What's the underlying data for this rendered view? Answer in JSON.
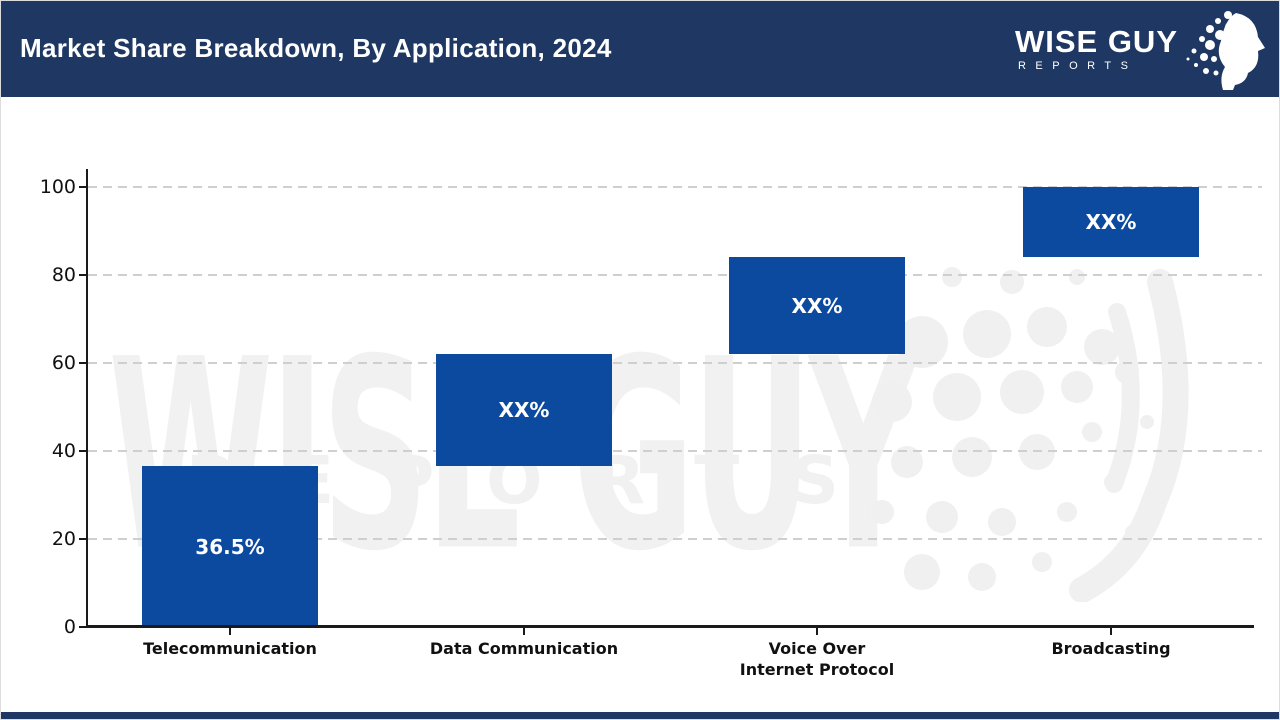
{
  "header": {
    "title": "Market Share Breakdown, By Application, 2024",
    "brand": {
      "name": "WISE GUY",
      "subtitle": "REPORTS"
    }
  },
  "watermark": {
    "wordmark": "WISE GUY",
    "subtitle": "REPORTS"
  },
  "chart_data": {
    "type": "bar",
    "subtype": "waterfall",
    "title": "Market Share Breakdown, By Application, 2024",
    "categories": [
      "Telecommunication",
      "Data Communication",
      "Voice Over\nInternet Protocol",
      "Broadcasting"
    ],
    "segments": [
      {
        "category": "Telecommunication",
        "start": 0,
        "end": 36.5,
        "label": "36.5%"
      },
      {
        "category": "Data Communication",
        "start": 36.5,
        "end": 62,
        "label": "XX%"
      },
      {
        "category": "Voice Over Internet Protocol",
        "start": 62,
        "end": 84,
        "label": "XX%"
      },
      {
        "category": "Broadcasting",
        "start": 84,
        "end": 100,
        "label": "XX%"
      }
    ],
    "xlabel": "",
    "ylabel": "",
    "ylim": [
      0,
      100
    ],
    "yticks": [
      0,
      20,
      40,
      60,
      80,
      100
    ],
    "grid": "horizontal-dashed",
    "legend": "none",
    "bar_color": "#0b4a9e",
    "bar_label_color": "#ffffff"
  },
  "colors": {
    "header_bg": "#1f3863",
    "footer_bg": "#1f3863",
    "bar": "#0b4a9e",
    "grid": "#cfcfcf",
    "axis": "#1a1a1a",
    "watermark": "#f1f1f2"
  }
}
